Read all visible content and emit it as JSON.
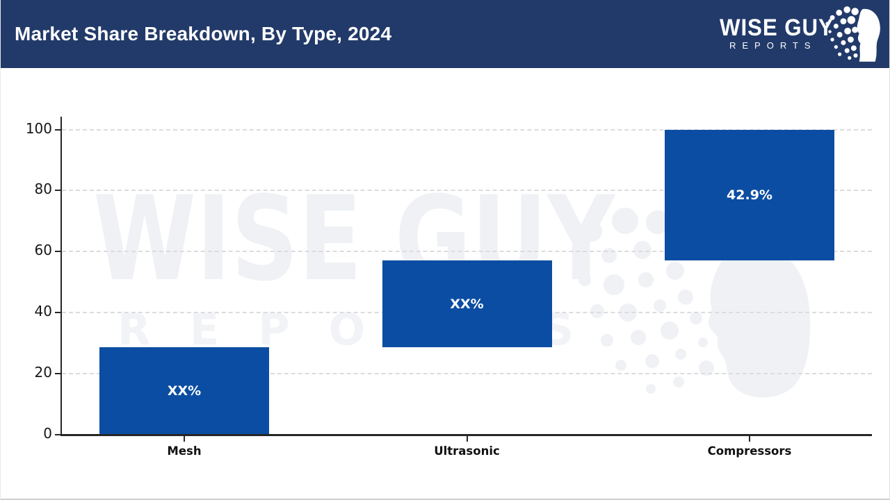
{
  "header": {
    "title": "Market Share Breakdown, By Type, 2024",
    "logo": {
      "line1": "WISE GUY",
      "line2": "REPORTS"
    }
  },
  "watermark": {
    "line1": "WISE GUY",
    "line2": "REPORTS"
  },
  "chart_data": {
    "type": "bar",
    "variant": "floating-stacked-waterfall",
    "title": "Market Share Breakdown, By Type, 2024",
    "categories": [
      "Mesh",
      "Ultrasonic",
      "Compressors"
    ],
    "segments": [
      {
        "category": "Mesh",
        "base": 0,
        "top": 28.6,
        "label": "XX%"
      },
      {
        "category": "Ultrasonic",
        "base": 28.6,
        "top": 57.1,
        "label": "XX%"
      },
      {
        "category": "Compressors",
        "base": 57.1,
        "top": 100,
        "label": "42.9%"
      }
    ],
    "yticks": [
      0,
      20,
      40,
      60,
      80,
      100
    ],
    "ylim": [
      0,
      104
    ],
    "xlabel": "",
    "ylabel": "",
    "grid": "horizontal-dashed",
    "legend": "none",
    "colors": {
      "bar": "#0b4da2",
      "header_bg": "#223a69",
      "axis": "#262626",
      "grid_line": "#dcdcde",
      "tick_text": "#161616",
      "bar_label_text": "#ffffff",
      "watermark": "#eff1f4"
    }
  }
}
